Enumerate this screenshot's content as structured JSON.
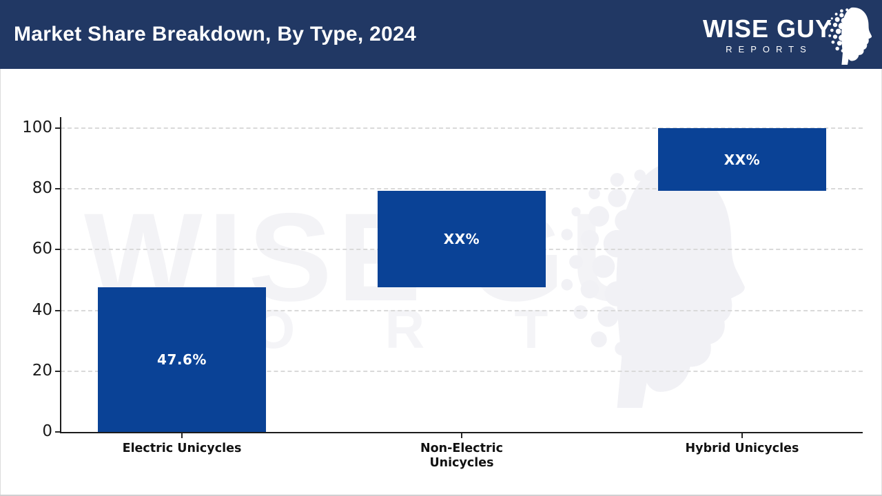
{
  "header": {
    "title": "Market Share Breakdown, By Type, 2024",
    "bg_color": "#213864",
    "logo": {
      "line1": "WISE GUY",
      "line2": "REPORTS"
    }
  },
  "watermark": {
    "line1": "WISE GU",
    "line2": "R O R T S"
  },
  "chart_data": {
    "type": "bar",
    "variant": "waterfall-floating-segments",
    "title": "Market Share Breakdown, By Type, 2024",
    "categories": [
      "Electric Unicycles",
      "Non-Electric\nUnicycles",
      "Hybrid Unicycles"
    ],
    "segments": [
      {
        "category": "Electric Unicycles",
        "start": 0,
        "end": 47.6,
        "label": "47.6%"
      },
      {
        "category": "Non-Electric Unicycles",
        "start": 47.6,
        "end": 79.3,
        "label": "XX%"
      },
      {
        "category": "Hybrid Unicycles",
        "start": 79.3,
        "end": 100,
        "label": "XX%"
      }
    ],
    "xlabel": "",
    "ylabel": "",
    "ylim": [
      0,
      100
    ],
    "yticks": [
      0,
      20,
      40,
      60,
      80,
      100
    ],
    "grid": "horizontal-dashed",
    "legend": "none",
    "bar_color": "#0a4296",
    "bar_label_color": "#ffffff"
  }
}
